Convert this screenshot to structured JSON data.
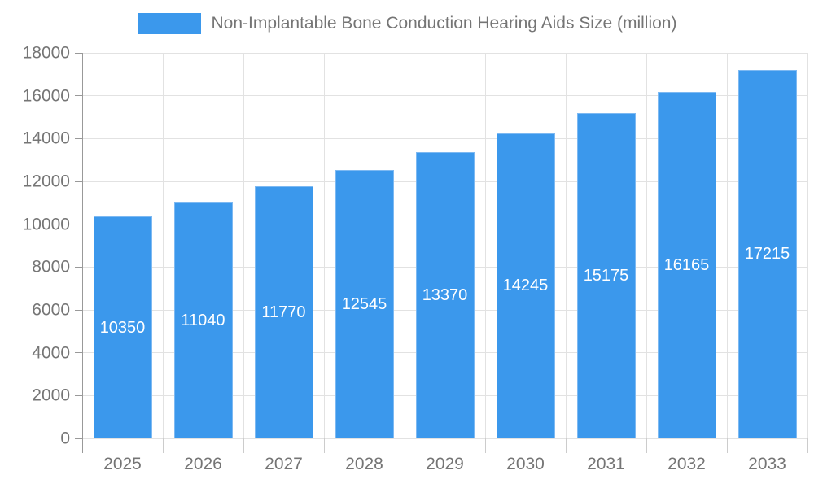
{
  "chart_data": {
    "type": "bar",
    "title": "Non-Implantable Bone Conduction Hearing Aids Size (million)",
    "legend": "Non-Implantable Bone Conduction Hearing Aids Size (million)",
    "legend_position": "top",
    "categories": [
      "2025",
      "2026",
      "2027",
      "2028",
      "2029",
      "2030",
      "2031",
      "2032",
      "2033"
    ],
    "series": [
      {
        "name": "Non-Implantable Bone Conduction Hearing Aids Size (million)",
        "values": [
          10350,
          11040,
          11770,
          12545,
          13370,
          14245,
          15175,
          16165,
          17215
        ]
      }
    ],
    "bar_labels": [
      "10350",
      "11040",
      "11770",
      "12545",
      "13370",
      "14245",
      "15175",
      "16165",
      "17215"
    ],
    "xlabel": "",
    "ylabel": "",
    "ylim": [
      0,
      18000
    ],
    "yticks": [
      0,
      2000,
      4000,
      6000,
      8000,
      10000,
      12000,
      14000,
      16000,
      18000
    ],
    "grid": true,
    "colors": {
      "bar_fill": "#3b98ec",
      "bar_border": "#7db9f2",
      "grid_line": "#e2e2e2",
      "axis_line": "#999999",
      "x_tick_line": "#cccccc",
      "label_text": "#757575",
      "bar_label_text": "#ffffff"
    }
  }
}
